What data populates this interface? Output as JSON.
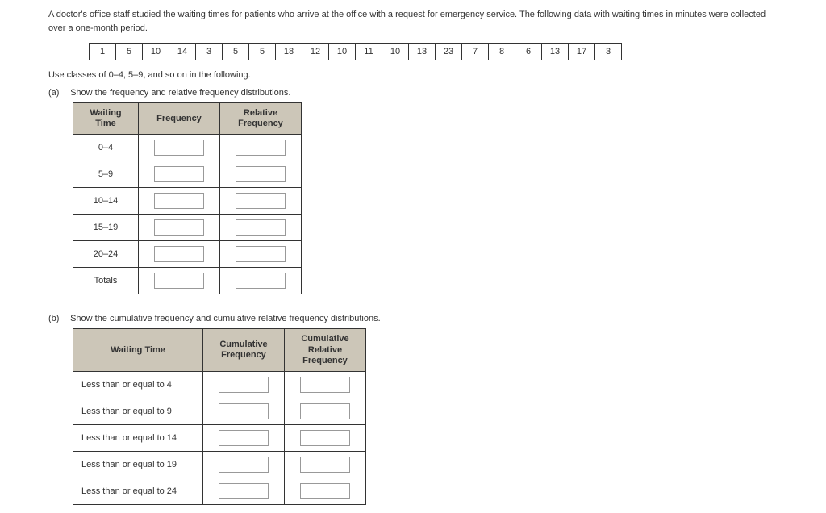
{
  "problem_intro": "A doctor's office staff studied the waiting times for patients who arrive at the office with a request for emergency service. The following data with waiting times in minutes were collected over a one-month period.",
  "data_values": [
    "1",
    "5",
    "10",
    "14",
    "3",
    "5",
    "5",
    "18",
    "12",
    "10",
    "11",
    "10",
    "13",
    "23",
    "7",
    "8",
    "6",
    "13",
    "17",
    "3"
  ],
  "class_instruction": "Use classes of 0–4, 5–9, and so on in the following.",
  "parts": {
    "a": {
      "label": "(a)",
      "text": "Show the frequency and relative frequency distributions.",
      "headers": {
        "c1_l1": "Waiting",
        "c1_l2": "Time",
        "c2": "Frequency",
        "c3_l1": "Relative",
        "c3_l2": "Frequency"
      },
      "rows": [
        "0–4",
        "5–9",
        "10–14",
        "15–19",
        "20–24",
        "Totals"
      ]
    },
    "b": {
      "label": "(b)",
      "text": "Show the cumulative frequency and cumulative relative frequency distributions.",
      "headers": {
        "c1": "Waiting Time",
        "c2_l1": "Cumulative",
        "c2_l2": "Frequency",
        "c3_l1": "Cumulative",
        "c3_l2": "Relative",
        "c3_l3": "Frequency"
      },
      "rows": [
        "Less than or equal to 4",
        "Less than or equal to 9",
        "Less than or equal to 14",
        "Less than or equal to 19",
        "Less than or equal to 24"
      ]
    }
  }
}
